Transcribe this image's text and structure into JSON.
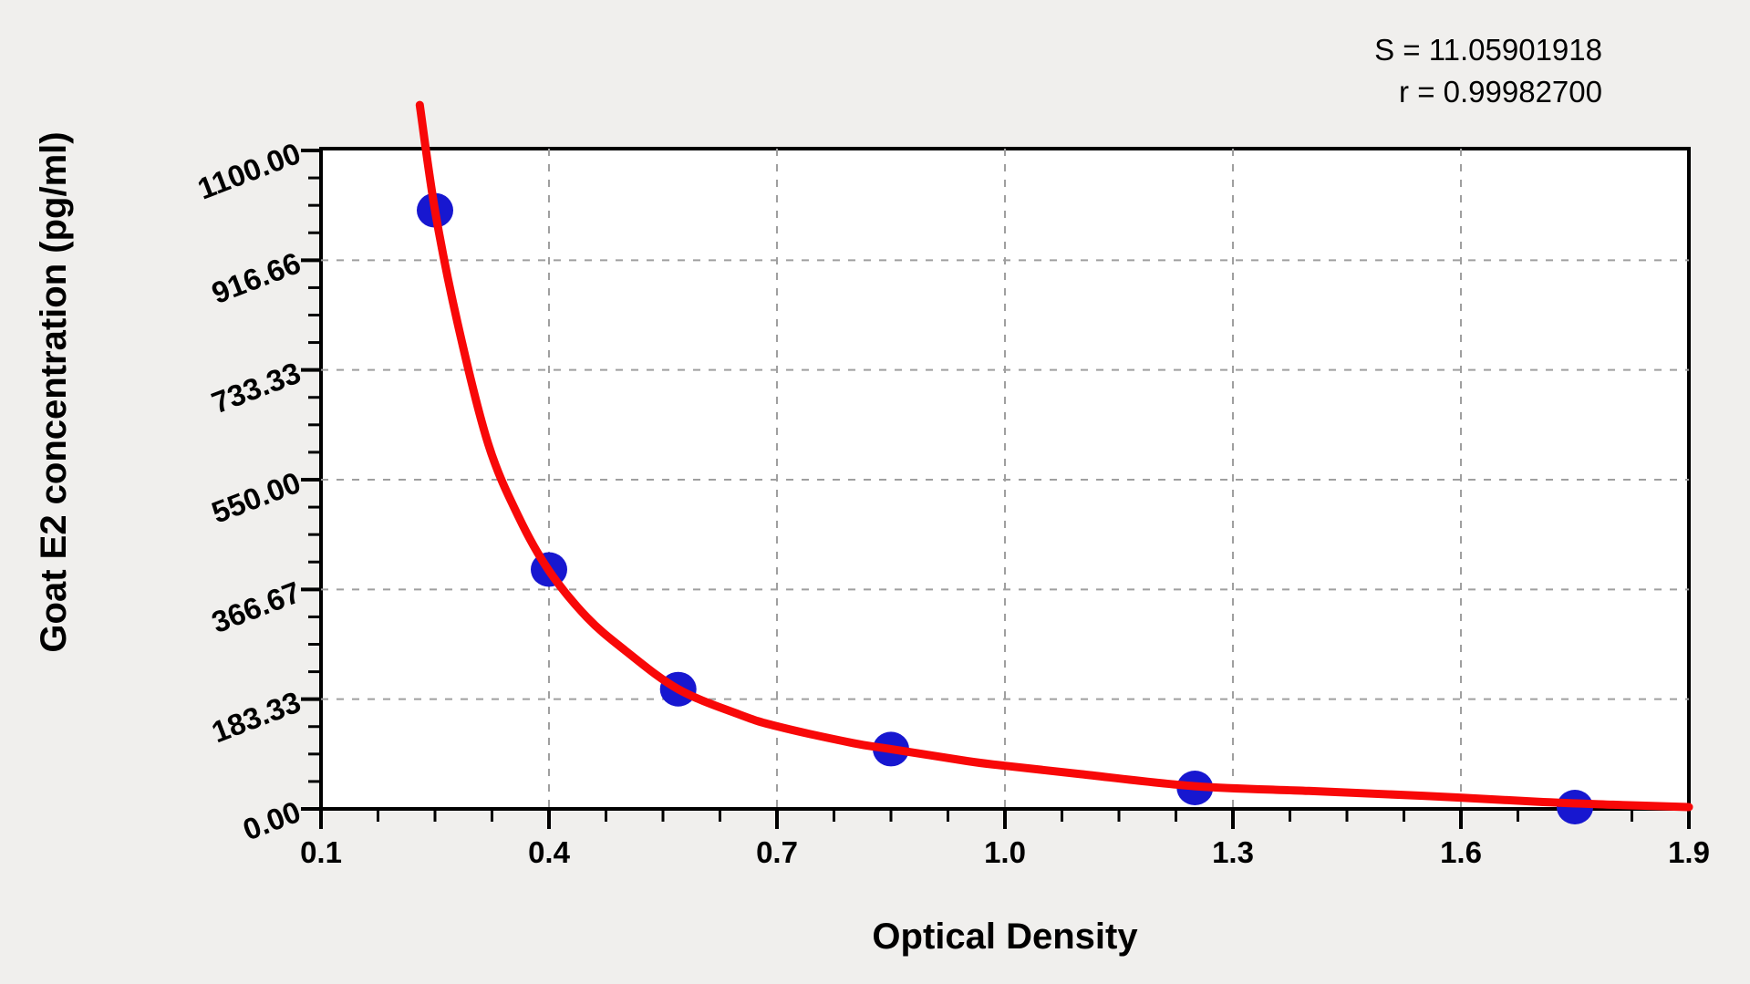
{
  "page": {
    "background": "#f0efed"
  },
  "annotation": {
    "s_line": "S = 11.05901918",
    "r_line": "r = 0.99982700"
  },
  "chart_data": {
    "type": "scatter",
    "title": "",
    "xlabel": "Optical Density",
    "ylabel": "Goat E2 concentration (pg/ml)",
    "x_tick_labels": [
      "0.1",
      "0.4",
      "0.7",
      "1.0",
      "1.3",
      "1.6",
      "1.9"
    ],
    "y_tick_labels": [
      "0.00",
      "183.33",
      "366.67",
      "550.00",
      "733.33",
      "916.66",
      "1100.00"
    ],
    "xlim": [
      0.1,
      1.9
    ],
    "ylim": [
      0,
      1100
    ],
    "x_major_step": 0.3,
    "y_major_step": 183.333,
    "minor_divisions_per_major": 4,
    "grid": "dashed",
    "legend_position": "none",
    "stats": {
      "S": "11.05901918",
      "r": "0.99982700"
    },
    "points": [
      {
        "od": 0.25,
        "conc": 1000
      },
      {
        "od": 0.4,
        "conc": 400
      },
      {
        "od": 0.57,
        "conc": 200
      },
      {
        "od": 0.85,
        "conc": 100
      },
      {
        "od": 1.25,
        "conc": 35
      },
      {
        "od": 1.75,
        "conc": 3
      }
    ],
    "fit_curve": [
      [
        0.23,
        1176
      ],
      [
        0.25,
        1000
      ],
      [
        0.28,
        810
      ],
      [
        0.32,
        610
      ],
      [
        0.36,
        488
      ],
      [
        0.4,
        398
      ],
      [
        0.45,
        320
      ],
      [
        0.5,
        265
      ],
      [
        0.57,
        200
      ],
      [
        0.65,
        158
      ],
      [
        0.7,
        138
      ],
      [
        0.8,
        110
      ],
      [
        0.85,
        100
      ],
      [
        0.95,
        80
      ],
      [
        1.0,
        72
      ],
      [
        1.1,
        58
      ],
      [
        1.25,
        38
      ],
      [
        1.4,
        30
      ],
      [
        1.55,
        22
      ],
      [
        1.7,
        12
      ],
      [
        1.8,
        7
      ],
      [
        1.9,
        3
      ]
    ],
    "colors": {
      "curve": "#f80808",
      "points": "#1717d0",
      "grid": "#9f9f9f",
      "axis": "#000000",
      "plot_background": "#ffffff",
      "page_background": "#f0efed"
    }
  }
}
